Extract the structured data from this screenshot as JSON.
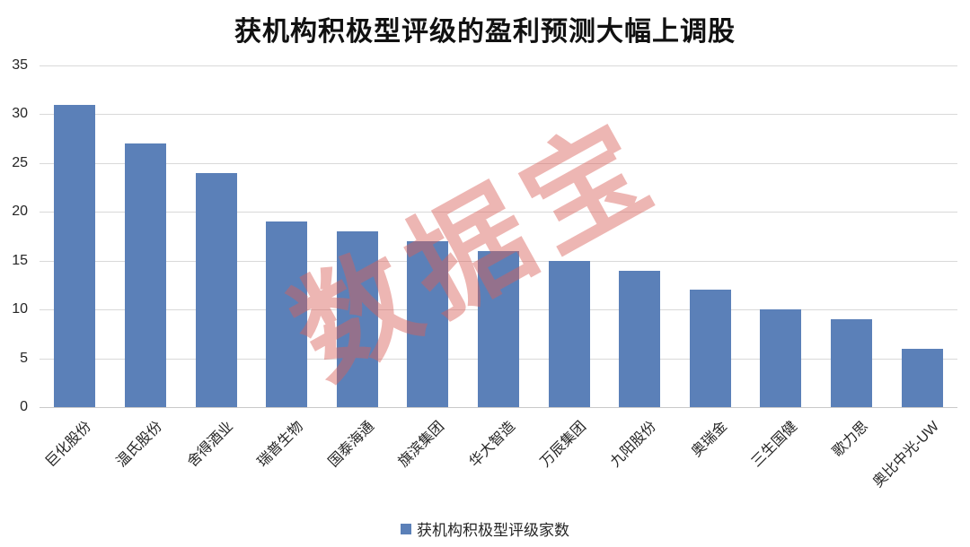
{
  "title": "获机构积极型评级的盈利预测大幅上调股",
  "watermark_text": "数据宝",
  "legend": {
    "label": "获机构积极型评级家数",
    "marker": "blue-square"
  },
  "colors": {
    "bar": "#5b80b8",
    "gridline": "#d9d9d9",
    "axis_line": "#c9c9c9",
    "watermark": "#d95f58",
    "title_text": "#111111",
    "tick_text": "#262626"
  },
  "y_axis": {
    "min": 0,
    "max": 35,
    "step": 5,
    "tick_labels": [
      "0",
      "5",
      "10",
      "15",
      "20",
      "25",
      "30",
      "35"
    ]
  },
  "chart_data": {
    "type": "bar",
    "title": "获机构积极型评级的盈利预测大幅上调股",
    "categories": [
      "巨化股份",
      "温氏股份",
      "舍得酒业",
      "瑞普生物",
      "国泰海通",
      "旗滨集团",
      "华大智造",
      "万辰集团",
      "九阳股份",
      "奥瑞金",
      "三生国健",
      "歌力思",
      "奥比中光-UW"
    ],
    "series": [
      {
        "name": "获机构积极型评级家数",
        "values": [
          31,
          27,
          24,
          19,
          18,
          17,
          16,
          15,
          14,
          12,
          10,
          9,
          6
        ]
      }
    ],
    "xlabel": "",
    "ylabel": "",
    "ylim": [
      0,
      35
    ],
    "grid": true,
    "legend_position": "bottom",
    "x_tick_rotation": 45
  }
}
